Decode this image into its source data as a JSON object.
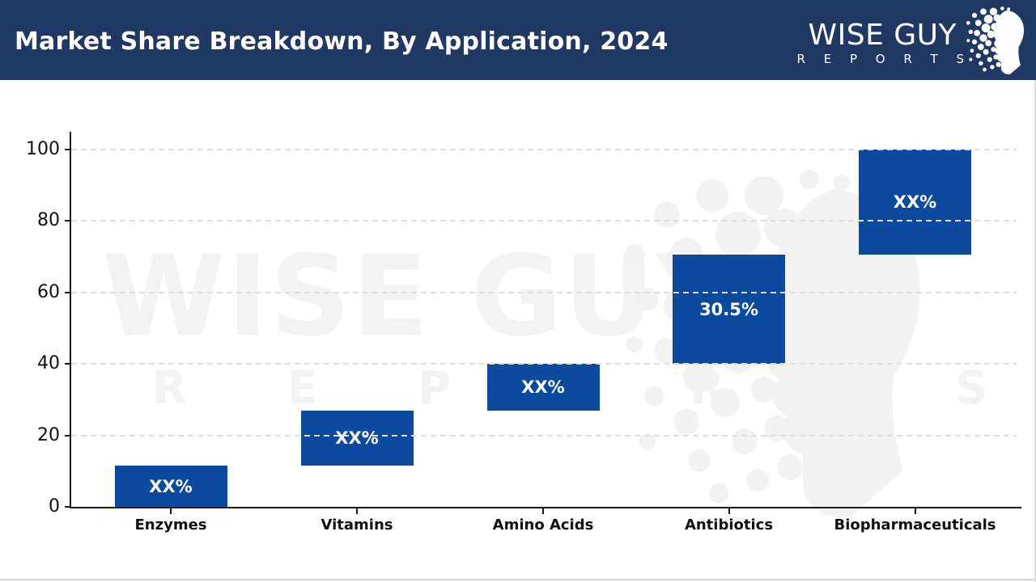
{
  "header": {
    "title": "Market Share Breakdown, By Application, 2024",
    "logo": {
      "primary": "WISE GUY",
      "secondary": "R E P O R T S"
    }
  },
  "watermark": {
    "primary": "WISE GUY",
    "secondary": "R E P O R T S"
  },
  "chart_data": {
    "type": "bar",
    "subtype": "floating-waterfall",
    "title": "Market Share Breakdown, By Application, 2024",
    "categories": [
      "Enzymes",
      "Vitamins",
      "Amino Acids",
      "Antibiotics",
      "Biopharmaceuticals"
    ],
    "segments": [
      {
        "category": "Enzymes",
        "start": 0,
        "end": 11.5,
        "label": "XX%"
      },
      {
        "category": "Vitamins",
        "start": 11.5,
        "end": 27,
        "label": "XX%"
      },
      {
        "category": "Amino Acids",
        "start": 27,
        "end": 40,
        "label": "XX%"
      },
      {
        "category": "Antibiotics",
        "start": 40,
        "end": 70.5,
        "label": "30.5%"
      },
      {
        "category": "Biopharmaceuticals",
        "start": 70.5,
        "end": 100,
        "label": "XX%"
      }
    ],
    "yticks": [
      0,
      20,
      40,
      60,
      80,
      100
    ],
    "ylim": [
      0,
      105
    ],
    "xlabel": "",
    "ylabel": "",
    "grid": "horizontal-dashed",
    "legend": "none",
    "bar_color": "#0b4a9f",
    "bar_label_color": "#ffffff"
  },
  "colors": {
    "header_bg": "#1f3864",
    "page_bg": "#ffffff",
    "bar": "#0b4a9f",
    "grid": "#dedede",
    "axis": "#1a1a1a",
    "watermark": "#f2f2f2"
  }
}
